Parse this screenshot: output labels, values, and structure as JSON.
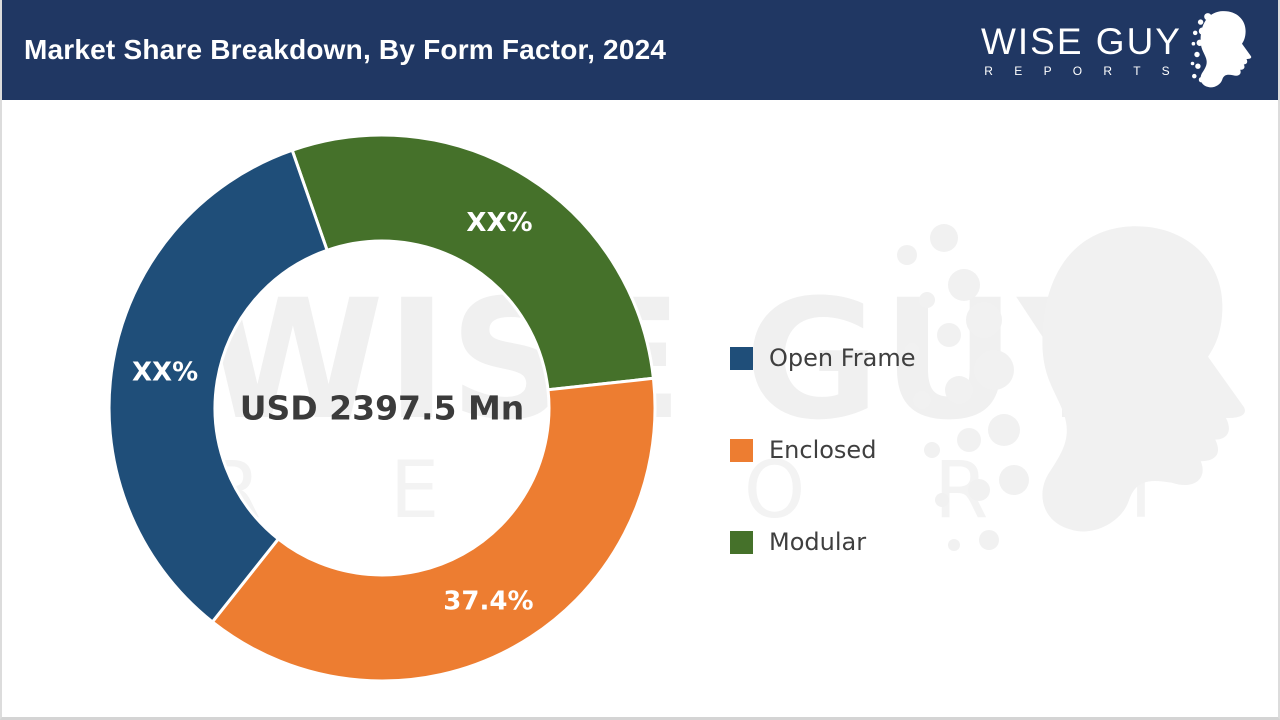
{
  "header": {
    "title": "Market Share Breakdown, By Form Factor, 2024",
    "logo_text": "WISE GUY",
    "logo_subtext": "R E P O R T S"
  },
  "watermark": {
    "line1": "WISE GUY",
    "line2": "R E P O R T S"
  },
  "chart_data": {
    "type": "pie",
    "subtype": "donut",
    "title": "Market Share Breakdown, By Form Factor, 2024",
    "center_label": "USD 2397.5 Mn",
    "units": "percent of market share",
    "start_angle_deg": -19.2,
    "hole_ratio": 0.61,
    "legend_position": "right",
    "segments": [
      {
        "name": "Modular",
        "value": 28.6,
        "display_label": "XX%",
        "color": "#45712A"
      },
      {
        "name": "Enclosed",
        "value": 37.4,
        "display_label": "37.4%",
        "color": "#ED7D31"
      },
      {
        "name": "Open Frame",
        "value": 34.0,
        "display_label": "XX%",
        "color": "#1F4E79"
      }
    ],
    "legend": [
      {
        "label": "Open Frame",
        "color": "#1F4E79"
      },
      {
        "label": "Enclosed",
        "color": "#ED7D31"
      },
      {
        "label": "Modular",
        "color": "#45712A"
      }
    ]
  },
  "colors": {
    "header_bg": "#203763",
    "watermark": "#f0f0f0",
    "center_text": "#3b3b3b",
    "border_line": "#d4d4d4"
  }
}
